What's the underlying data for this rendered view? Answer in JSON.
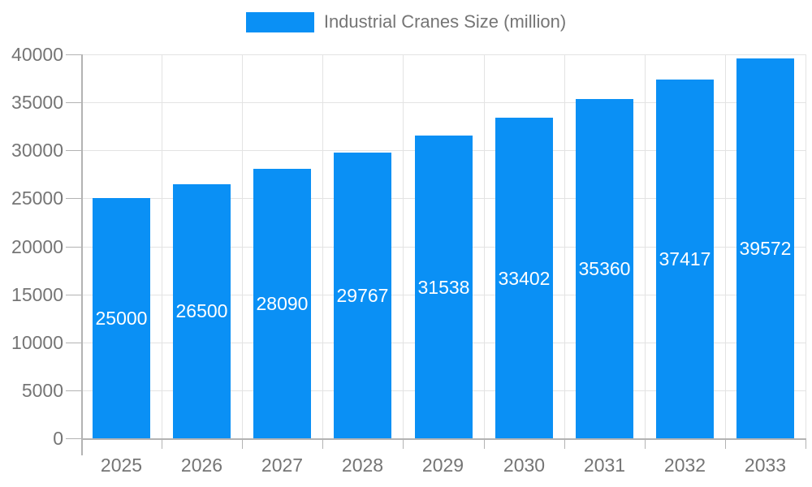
{
  "legend": {
    "series_label": "Industrial Cranes Size (million)"
  },
  "colors": {
    "bar": "#0a90f5",
    "grid": "#e3e3e3",
    "axis": "#b3b3b3",
    "axis_text": "#757575",
    "value_label": "#ffffff",
    "background": "#ffffff"
  },
  "chart_data": {
    "type": "bar",
    "title": "Industrial Cranes Size (million)",
    "categories": [
      "2025",
      "2026",
      "2027",
      "2028",
      "2029",
      "2030",
      "2031",
      "2032",
      "2033"
    ],
    "values": [
      25000,
      26500,
      28090,
      29767,
      31538,
      33402,
      35360,
      37417,
      39572
    ],
    "xlabel": "",
    "ylabel": "",
    "ylim": [
      0,
      40000
    ],
    "y_ticks": [
      0,
      5000,
      10000,
      15000,
      20000,
      25000,
      30000,
      35000,
      40000
    ],
    "grid": true,
    "legend_position": "top-center",
    "value_label_position": "inside-center"
  }
}
